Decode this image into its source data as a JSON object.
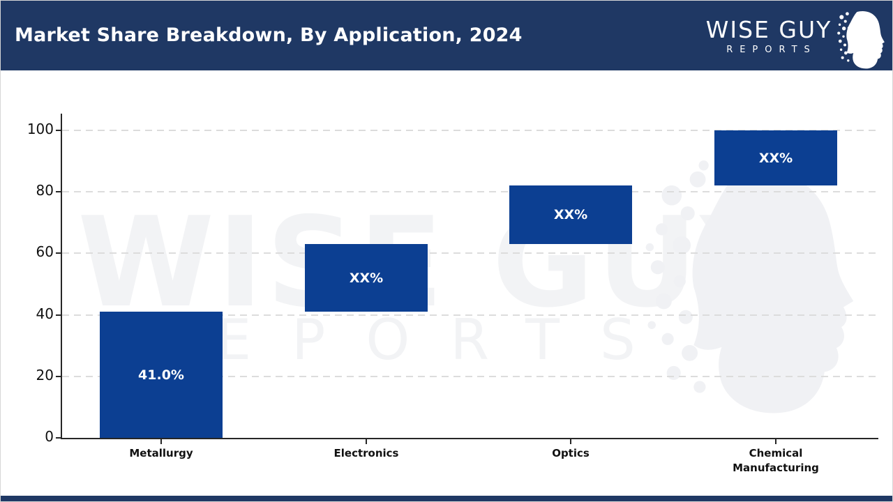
{
  "header": {
    "title": "Market Share Breakdown, By Application, 2024",
    "background_color": "#1f3864"
  },
  "logo": {
    "line1": "WISE GUY",
    "line2": "REPORTS",
    "icon": "dotted-face-profile"
  },
  "watermark": {
    "line1": "WISE GUY",
    "line2": "REPORTS",
    "icon": "dotted-face-profile",
    "color": "#f2f3f5"
  },
  "chart_data": {
    "type": "bar",
    "subtype": "waterfall",
    "title": "Market Share Breakdown, By Application, 2024",
    "categories": [
      "Metallurgy",
      "Electronics",
      "Optics",
      "Chemical Manufacturing"
    ],
    "segments": [
      {
        "category": "Metallurgy",
        "start": 0,
        "end": 41,
        "label": "41.0%"
      },
      {
        "category": "Electronics",
        "start": 41,
        "end": 63,
        "label": "XX%"
      },
      {
        "category": "Optics",
        "start": 63,
        "end": 82,
        "label": "XX%"
      },
      {
        "category": "Chemical Manufacturing",
        "start": 82,
        "end": 100,
        "label": "XX%"
      }
    ],
    "ylim": [
      0,
      100
    ],
    "yticks": [
      0,
      20,
      40,
      60,
      80,
      100
    ],
    "xlabel": "",
    "ylabel": "",
    "grid": "horizontal-dashed",
    "legend": "none",
    "colors": {
      "bar": "#0c3f92",
      "bar_label": "#ffffff",
      "axis": "#262626",
      "grid_line": "#dcdcdc",
      "tick_label": "#111111"
    }
  }
}
